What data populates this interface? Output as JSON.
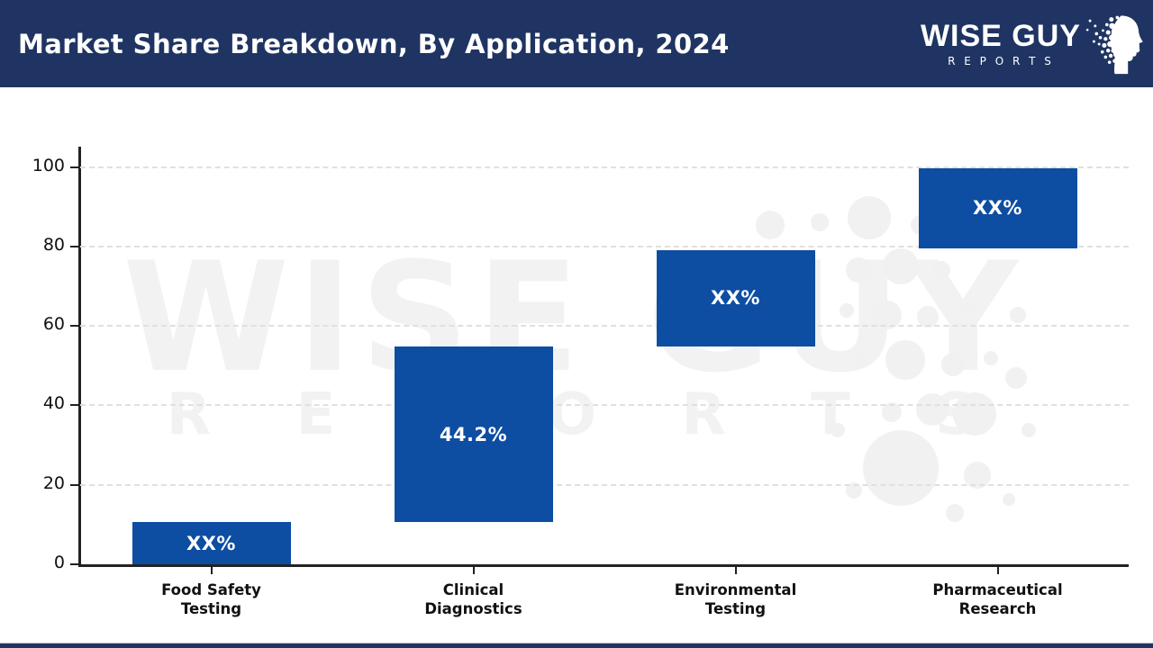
{
  "header": {
    "title": "Market Share Breakdown, By Application, 2024",
    "logo": {
      "line1": "WISE GUY",
      "line2": "R E P O R T S"
    }
  },
  "watermark": {
    "line1": "WISE GUY",
    "line2": "R E P O R T S"
  },
  "chart_data": {
    "type": "bar",
    "subtype": "waterfall-floating-segments",
    "title": "Market Share Breakdown, By Application, 2024",
    "categories": [
      "Food Safety Testing",
      "Clinical Diagnostics",
      "Environmental Testing",
      "Pharmaceutical Research"
    ],
    "category_lines": [
      [
        "Food Safety",
        "Testing"
      ],
      [
        "Clinical",
        "Diagnostics"
      ],
      [
        "Environmental",
        "Testing"
      ],
      [
        "Pharmaceutical",
        "Research"
      ]
    ],
    "segments": [
      {
        "start": 0,
        "end": 10.6
      },
      {
        "start": 10.6,
        "end": 54.8
      },
      {
        "start": 54.8,
        "end": 79.2
      },
      {
        "start": 79.6,
        "end": 99.8
      }
    ],
    "values": [
      10.6,
      44.2,
      24.4,
      20.2
    ],
    "bar_labels": [
      "XX%",
      "44.2%",
      "XX%",
      "XX%"
    ],
    "yticks": [
      0,
      20,
      40,
      60,
      80,
      100
    ],
    "ylim": [
      0,
      104.7
    ],
    "xlabel": "",
    "ylabel": "",
    "grid": "horizontal-dashed",
    "legend": "none",
    "colors": {
      "bar": "#0d4da2",
      "bar_label": "#ffffff",
      "header_bg": "#1f3462",
      "grid": "#e0e0e0",
      "axis": "#222222",
      "tick_label": "#111111",
      "watermark": "#f2f2f2"
    }
  }
}
